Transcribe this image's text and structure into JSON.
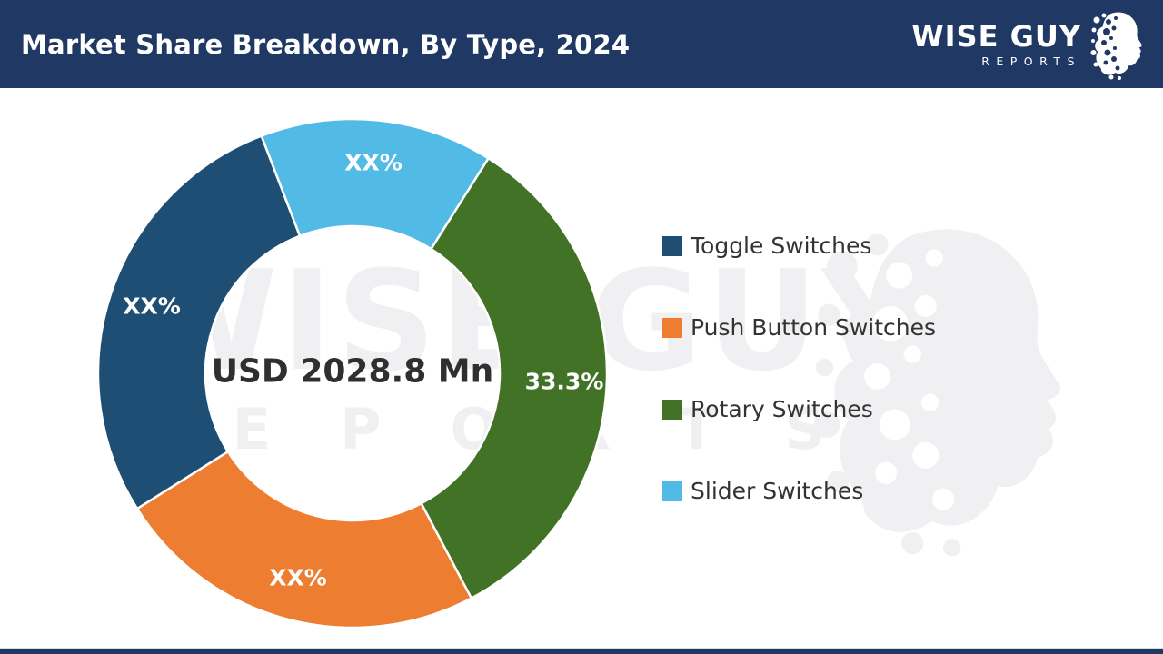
{
  "header": {
    "title": "Market Share Breakdown, By Type, 2024",
    "logo_line1": "WISE GUY",
    "logo_line2": "REPORTS"
  },
  "watermark": {
    "line1": "WISE GUY",
    "line2": "REPORTS"
  },
  "chart_data": {
    "type": "pie",
    "subtype": "donut",
    "title": "Market Share Breakdown, By Type, 2024",
    "center_label": "USD 2028.8 Mn",
    "units": "percent market share",
    "start_angle_deg": -21,
    "segments": [
      {
        "name": "Slider Switches",
        "color": "#52BBE5",
        "label": "XX%",
        "value_pct": 14.8,
        "value_shown": false
      },
      {
        "name": "Rotary Switches",
        "color": "#417226",
        "label": "33.3%",
        "value_pct": 33.3,
        "value_shown": true
      },
      {
        "name": "Push Button Switches",
        "color": "#ED7D31",
        "label": "XX%",
        "value_pct": 23.8,
        "value_shown": false
      },
      {
        "name": "Toggle Switches",
        "color": "#1F4E74",
        "label": "XX%",
        "value_pct": 28.1,
        "value_shown": false
      }
    ],
    "legend_position": "right"
  },
  "legend": {
    "items": [
      {
        "label": "Toggle Switches",
        "color": "#1F4E74"
      },
      {
        "label": "Push Button Switches",
        "color": "#ED7D31"
      },
      {
        "label": "Rotary Switches",
        "color": "#417226"
      },
      {
        "label": "Slider Switches",
        "color": "#52BBE5"
      }
    ]
  },
  "colors": {
    "header_bg": "#203864",
    "footer_bg": "#203864",
    "watermark": "#f0f0f2",
    "center_text": "#2f2f2f",
    "legend_text": "#333333",
    "slice_label_text": "#ffffff",
    "slice_gap": "#ffffff"
  }
}
